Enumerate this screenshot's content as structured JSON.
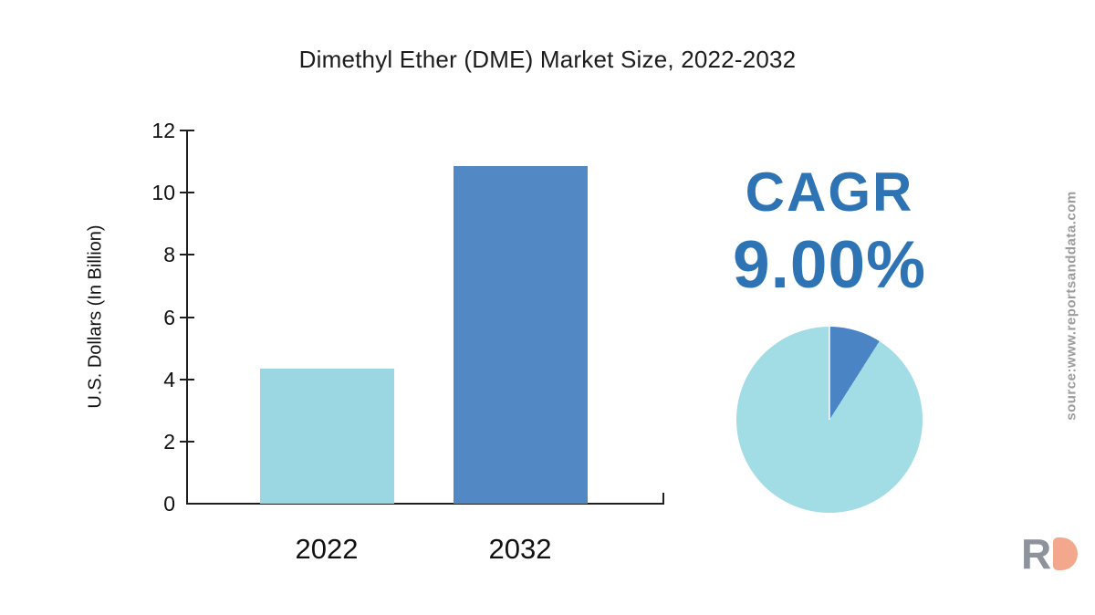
{
  "title": "Dimethyl Ether (DME) Market Size, 2022-2032",
  "chart_data": {
    "type": "bar",
    "title": "Dimethyl Ether (DME) Market Size, 2022-2032",
    "categories": [
      "2022",
      "2032"
    ],
    "values": [
      4.35,
      10.85
    ],
    "bar_colors": [
      "#9bd7e2",
      "#5289c5"
    ],
    "xlabel": "",
    "ylabel": "U.S. Dollars (In Billion)",
    "ylim": [
      0,
      12
    ],
    "yticks": [
      0,
      2,
      4,
      6,
      8,
      10,
      12
    ],
    "grid": "off",
    "legend": "none"
  },
  "cagr": {
    "label": "CAGR",
    "value": "9.00%",
    "percent": 9.0,
    "color": "#2e74b4"
  },
  "pie": {
    "type": "pie",
    "slice_percent": 9.0,
    "slice_color": "#4a84c4",
    "base_color": "#a2dce5"
  },
  "source": {
    "text": "source:www.reportsanddata.com"
  },
  "logo": {
    "letter_r": "R",
    "d_color": "#f3a88e"
  },
  "colors": {
    "axis": "#1f1f1f",
    "text": "#111111",
    "accent_blue": "#2e74b4",
    "bar_2022": "#9bd7e2",
    "bar_2032": "#5289c5"
  }
}
